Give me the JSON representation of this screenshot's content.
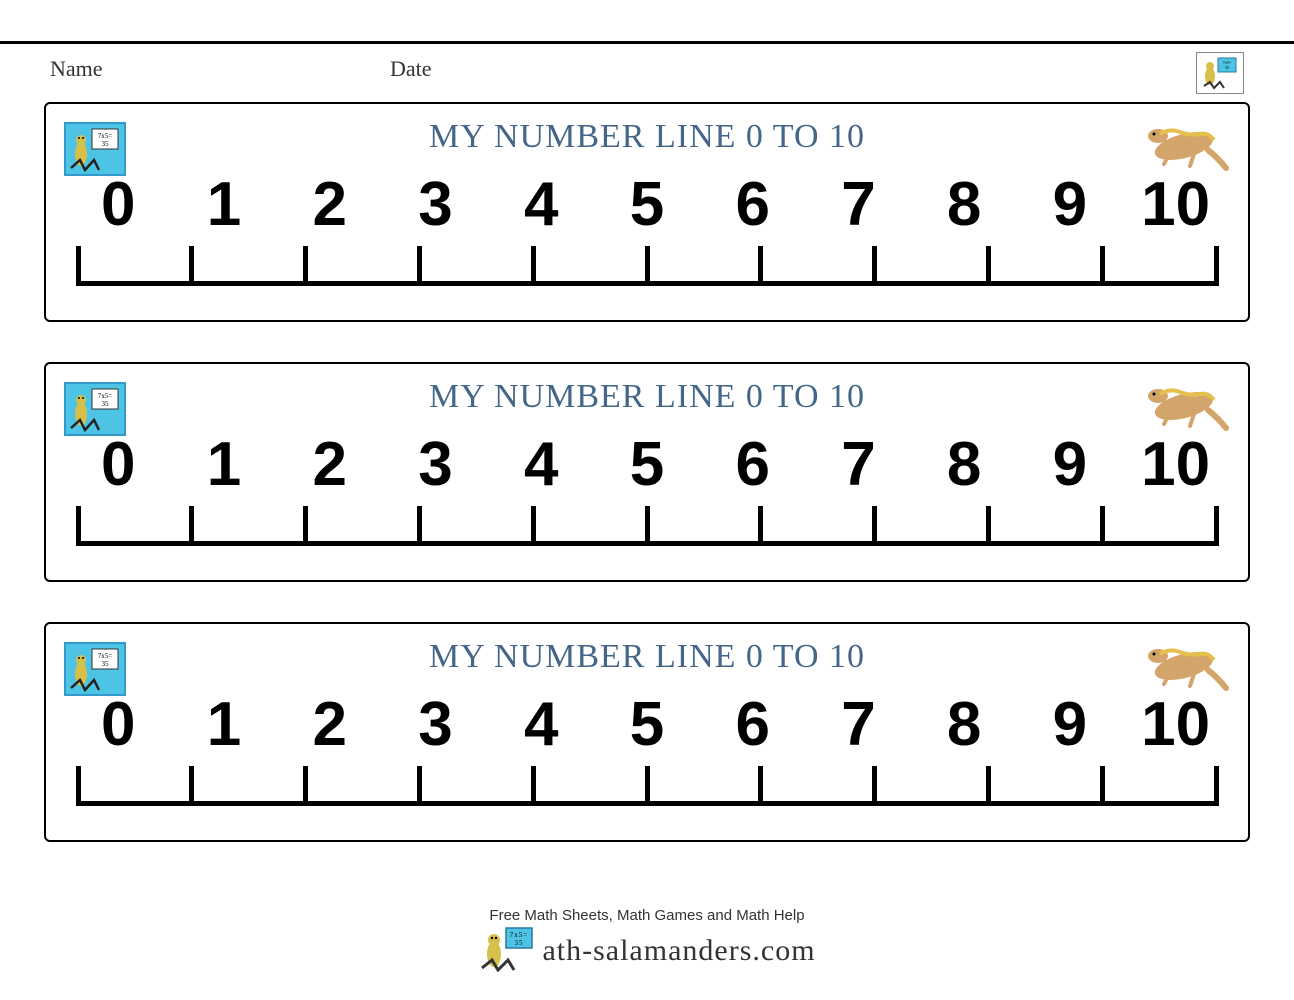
{
  "header": {
    "name_label": "Name",
    "date_label": "Date"
  },
  "panel_title": "MY NUMBER LINE 0 TO 10",
  "numbers": [
    "0",
    "1",
    "2",
    "3",
    "4",
    "5",
    "6",
    "7",
    "8",
    "9",
    "10"
  ],
  "tick_count": 11,
  "panel_count": 3,
  "colors": {
    "title_color": "#446688",
    "logo_border": "#3399cc",
    "logo_bg": "#4dc4e6",
    "salamander_body": "#d4a56a",
    "salamander_spine": "#e6c04d",
    "text": "#000000",
    "border": "#000000"
  },
  "footer": {
    "tagline": "Free Math Sheets, Math Games and Math Help",
    "brand": "ath-salamanders.com"
  }
}
